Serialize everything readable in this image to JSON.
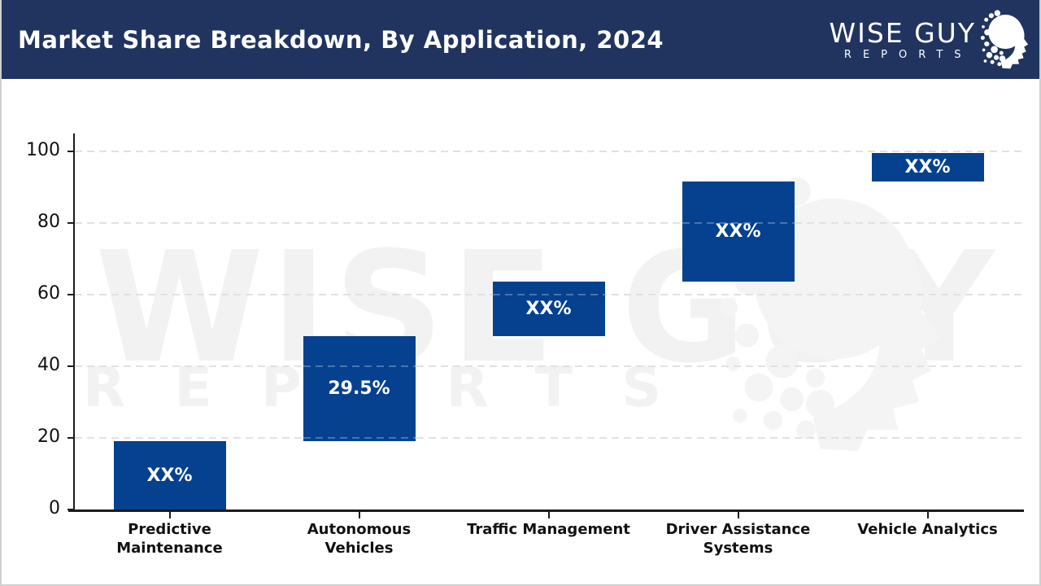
{
  "header": {
    "title": "Market Share Breakdown, By Application, 2024",
    "logo": {
      "name_top": "WISE GUY",
      "name_bottom": "REPORTS"
    }
  },
  "watermark": {
    "line1": "WISE GUY",
    "line2": "REPORTS"
  },
  "chart_data": {
    "type": "bar",
    "subtype": "floating-waterfall",
    "title": "Market Share Breakdown, By Application, 2024",
    "categories": [
      "Predictive\nMaintenance",
      "Autonomous\nVehicles",
      "Traffic Management",
      "Driver Assistance\nSystems",
      "Vehicle Analytics"
    ],
    "bars": [
      {
        "category": "Predictive Maintenance",
        "start": 0,
        "end": 19,
        "label": "XX%"
      },
      {
        "category": "Autonomous Vehicles",
        "start": 19,
        "end": 48.5,
        "label": "29.5%"
      },
      {
        "category": "Traffic Management",
        "start": 48.5,
        "end": 63.7,
        "label": "XX%"
      },
      {
        "category": "Driver Assistance Systems",
        "start": 63.7,
        "end": 91.5,
        "label": "XX%"
      },
      {
        "category": "Vehicle Analytics",
        "start": 91.5,
        "end": 99.5,
        "label": "XX%"
      }
    ],
    "ylim": [
      0,
      100
    ],
    "yticks": [
      0,
      20,
      40,
      60,
      80,
      100
    ],
    "grid": "horizontal-dashed",
    "legend": "none",
    "bar_color": "#05418f"
  },
  "colors": {
    "header_bg": "#21345f",
    "bar": "#05418f",
    "grid": "#e1e1e1",
    "axis": "#1b1b1b",
    "watermark": "#f2f2f2",
    "border": "#cfcfcf"
  }
}
